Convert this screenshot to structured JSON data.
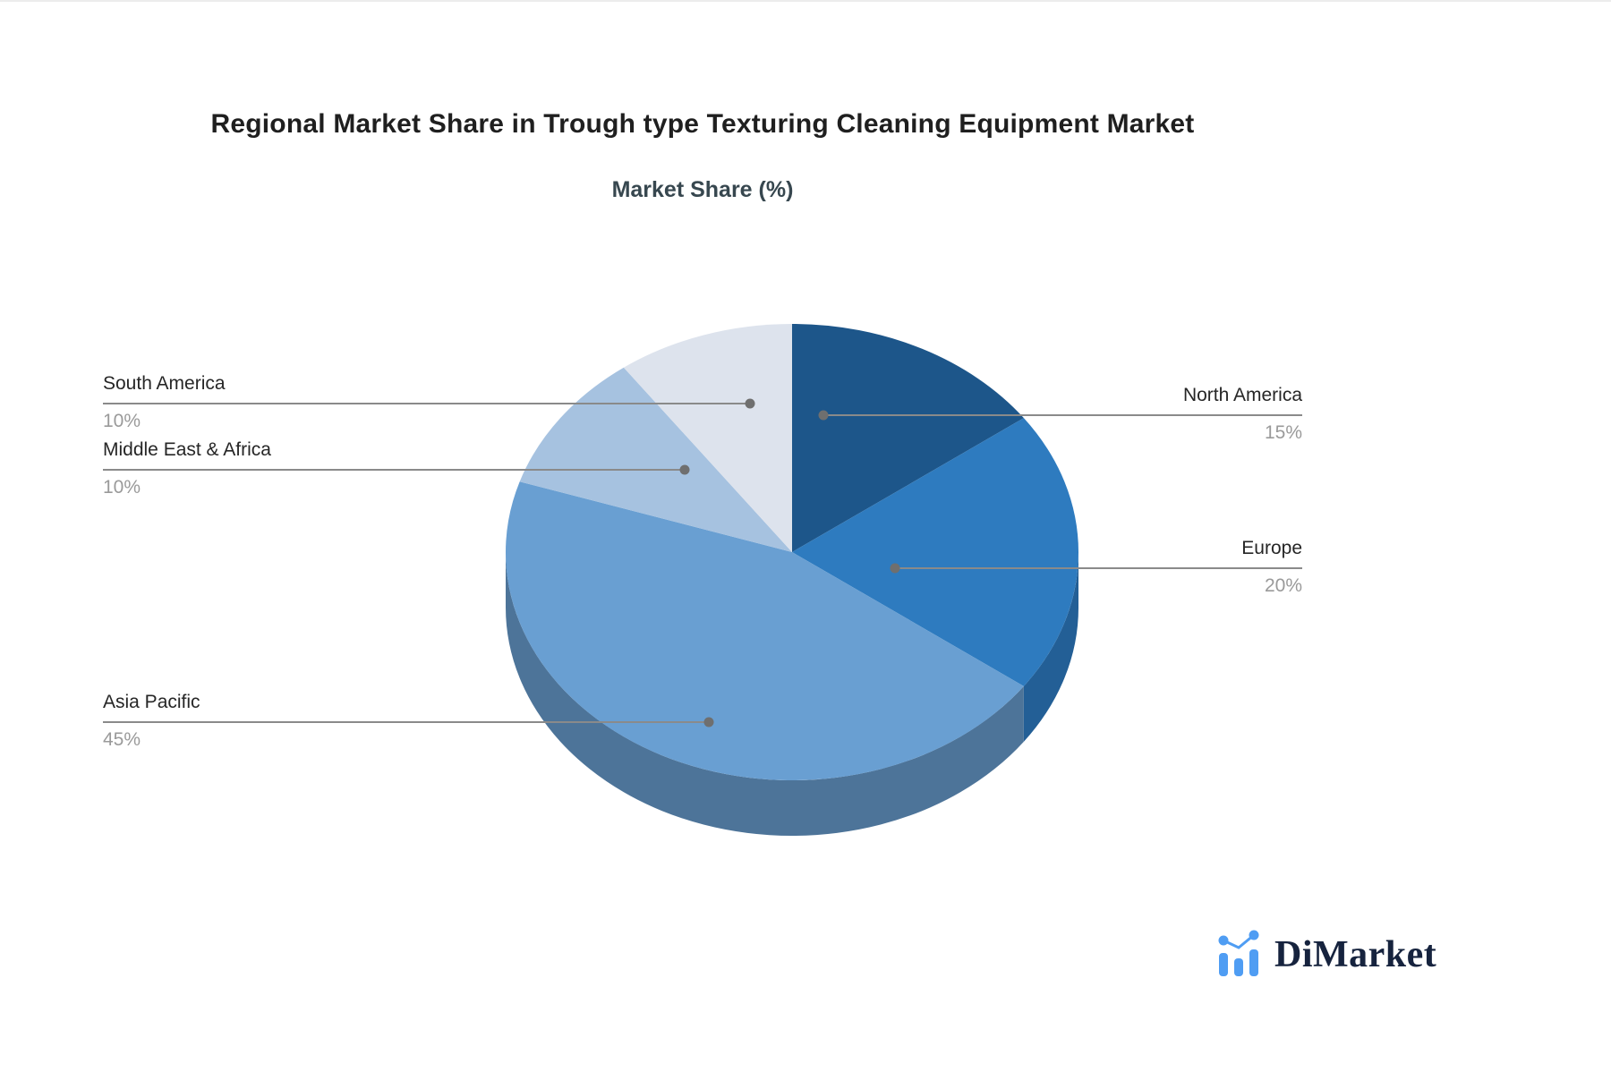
{
  "chart_data": {
    "type": "pie",
    "is3d": true,
    "title": "Regional Market Share in Trough type Texturing Cleaning Equipment Market",
    "subtitle": "Market Share (%)",
    "legend_position": "leader-line-labels",
    "start_angle_deg": 0,
    "direction": "clockwise",
    "segments": [
      {
        "label": "North America",
        "value": 15,
        "pct_label": "15%",
        "color": "#1d568a",
        "side_color": "#1a4d7c"
      },
      {
        "label": "Europe",
        "value": 20,
        "pct_label": "20%",
        "color": "#2e7bbf",
        "side_color": "#235f96"
      },
      {
        "label": "Asia Pacific",
        "value": 45,
        "pct_label": "45%",
        "color": "#699fd2",
        "side_color": "#4d7499"
      },
      {
        "label": "Middle East & Africa",
        "value": 10,
        "pct_label": "10%",
        "color": "#a6c2e0",
        "side_color": "#8ba8c9"
      },
      {
        "label": "South America",
        "value": 10,
        "pct_label": "10%",
        "color": "#dde3ed",
        "side_color": "#b9c4d6"
      }
    ]
  },
  "branding": {
    "logo_text": "DiMarket",
    "logo_icon": "bar-line-chart-icon",
    "logo_text_color": "#16233e",
    "logo_icon_color": "#4f9df3"
  },
  "styles": {
    "background": "#ffffff",
    "title_color": "#1f1f1f",
    "subtitle_color": "#37474f",
    "label_color": "#262626",
    "pct_color": "#9a9a9a",
    "leader_line_color": "#8a8a8a",
    "leader_dot_color": "#6f6f6f"
  }
}
